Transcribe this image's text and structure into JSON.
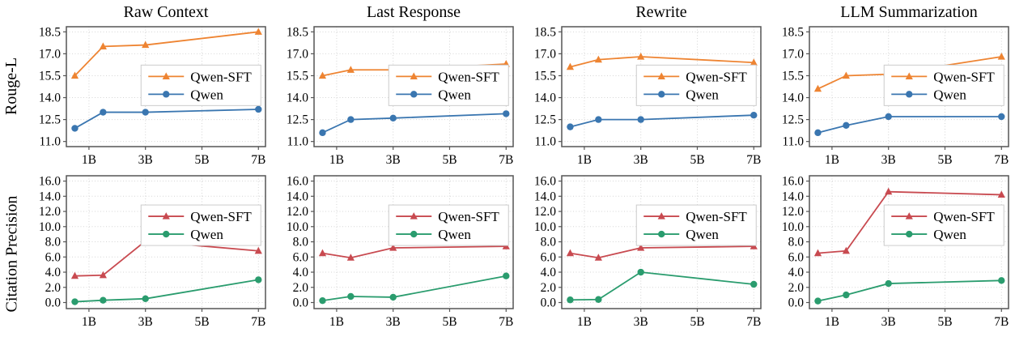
{
  "figure": {
    "row_labels": [
      "Rouge-L",
      "Citation Precision"
    ],
    "column_titles": [
      "Raw Context",
      "Last Response",
      "Rewrite",
      "LLM Summarization"
    ],
    "legend_labels": [
      "Qwen-SFT",
      "Qwen"
    ],
    "colors": {
      "rouge_sft": "#ee8432",
      "rouge_base": "#3a76b0",
      "citation_sft": "#c84a50",
      "citation_base": "#2a9c6e",
      "grid": "#d6d6d6",
      "spine": "#555555",
      "legend_border": "#cccccc",
      "text": "#000000"
    }
  },
  "chart_data": [
    {
      "type": "line",
      "title": "Raw Context",
      "ylabel": "Rouge-L",
      "xlabel": "",
      "x": [
        0.5,
        1.5,
        3,
        7
      ],
      "xlim": [
        0.2,
        7.25
      ],
      "xtick_values": [
        1,
        3,
        5,
        7
      ],
      "xtick_labels": [
        "1B",
        "3B",
        "5B",
        "7B"
      ],
      "ylim": [
        10.65,
        18.85
      ],
      "ytick_values": [
        11.0,
        12.5,
        14.0,
        15.5,
        17.0,
        18.5
      ],
      "ytick_labels": [
        "11.0",
        "12.5",
        "14.0",
        "15.5",
        "17.0",
        "18.5"
      ],
      "grid": true,
      "legend_position": "center right",
      "series": [
        {
          "name": "Qwen-SFT",
          "color": "#ee8432",
          "marker": "triangle",
          "values": [
            15.5,
            17.5,
            17.6,
            18.5
          ]
        },
        {
          "name": "Qwen",
          "color": "#3a76b0",
          "marker": "circle",
          "values": [
            11.9,
            13.0,
            13.0,
            13.2
          ]
        }
      ]
    },
    {
      "type": "line",
      "title": "Last Response",
      "ylabel": "Rouge-L",
      "xlabel": "",
      "x": [
        0.5,
        1.5,
        3,
        7
      ],
      "xlim": [
        0.2,
        7.25
      ],
      "xtick_values": [
        1,
        3,
        5,
        7
      ],
      "xtick_labels": [
        "1B",
        "3B",
        "5B",
        "7B"
      ],
      "ylim": [
        10.65,
        18.85
      ],
      "ytick_values": [
        11.0,
        12.5,
        14.0,
        15.5,
        17.0,
        18.5
      ],
      "ytick_labels": [
        "11.0",
        "12.5",
        "14.0",
        "15.5",
        "17.0",
        "18.5"
      ],
      "grid": true,
      "legend_position": "center right",
      "series": [
        {
          "name": "Qwen-SFT",
          "color": "#ee8432",
          "marker": "triangle",
          "values": [
            15.5,
            15.9,
            15.9,
            16.3
          ]
        },
        {
          "name": "Qwen",
          "color": "#3a76b0",
          "marker": "circle",
          "values": [
            11.6,
            12.5,
            12.6,
            12.9
          ]
        }
      ]
    },
    {
      "type": "line",
      "title": "Rewrite",
      "ylabel": "Rouge-L",
      "xlabel": "",
      "x": [
        0.5,
        1.5,
        3,
        7
      ],
      "xlim": [
        0.2,
        7.25
      ],
      "xtick_values": [
        1,
        3,
        5,
        7
      ],
      "xtick_labels": [
        "1B",
        "3B",
        "5B",
        "7B"
      ],
      "ylim": [
        10.65,
        18.85
      ],
      "ytick_values": [
        11.0,
        12.5,
        14.0,
        15.5,
        17.0,
        18.5
      ],
      "ytick_labels": [
        "11.0",
        "12.5",
        "14.0",
        "15.5",
        "17.0",
        "18.5"
      ],
      "grid": true,
      "legend_position": "center right",
      "series": [
        {
          "name": "Qwen-SFT",
          "color": "#ee8432",
          "marker": "triangle",
          "values": [
            16.1,
            16.6,
            16.8,
            16.4
          ]
        },
        {
          "name": "Qwen",
          "color": "#3a76b0",
          "marker": "circle",
          "values": [
            12.0,
            12.5,
            12.5,
            12.8
          ]
        }
      ]
    },
    {
      "type": "line",
      "title": "LLM Summarization",
      "ylabel": "Rouge-L",
      "xlabel": "",
      "x": [
        0.5,
        1.5,
        3,
        7
      ],
      "xlim": [
        0.2,
        7.25
      ],
      "xtick_values": [
        1,
        3,
        5,
        7
      ],
      "xtick_labels": [
        "1B",
        "3B",
        "5B",
        "7B"
      ],
      "ylim": [
        10.65,
        18.85
      ],
      "ytick_values": [
        11.0,
        12.5,
        14.0,
        15.5,
        17.0,
        18.5
      ],
      "ytick_labels": [
        "11.0",
        "12.5",
        "14.0",
        "15.5",
        "17.0",
        "18.5"
      ],
      "grid": true,
      "legend_position": "center right",
      "series": [
        {
          "name": "Qwen-SFT",
          "color": "#ee8432",
          "marker": "triangle",
          "values": [
            14.6,
            15.5,
            15.6,
            16.8
          ]
        },
        {
          "name": "Qwen",
          "color": "#3a76b0",
          "marker": "circle",
          "values": [
            11.6,
            12.1,
            12.7,
            12.7
          ]
        }
      ]
    },
    {
      "type": "line",
      "title": "Raw Context",
      "ylabel": "Citation Precision",
      "xlabel": "",
      "x": [
        0.5,
        1.5,
        3,
        7
      ],
      "xlim": [
        0.2,
        7.25
      ],
      "xtick_values": [
        1,
        3,
        5,
        7
      ],
      "xtick_labels": [
        "1B",
        "3B",
        "5B",
        "7B"
      ],
      "ylim": [
        -0.8,
        16.7
      ],
      "ytick_values": [
        0,
        2,
        4,
        6,
        8,
        10,
        12,
        14,
        16
      ],
      "ytick_labels": [
        "0.0",
        "2.0",
        "4.0",
        "6.0",
        "8.0",
        "10.0",
        "12.0",
        "14.0",
        "16.0"
      ],
      "grid": true,
      "legend_position": "center right",
      "series": [
        {
          "name": "Qwen-SFT",
          "color": "#c84a50",
          "marker": "triangle",
          "values": [
            3.5,
            3.6,
            8.1,
            6.8
          ]
        },
        {
          "name": "Qwen",
          "color": "#2a9c6e",
          "marker": "circle",
          "values": [
            0.1,
            0.3,
            0.5,
            3.0
          ]
        }
      ]
    },
    {
      "type": "line",
      "title": "Last Response",
      "ylabel": "Citation Precision",
      "xlabel": "",
      "x": [
        0.5,
        1.5,
        3,
        7
      ],
      "xlim": [
        0.2,
        7.25
      ],
      "xtick_values": [
        1,
        3,
        5,
        7
      ],
      "xtick_labels": [
        "1B",
        "3B",
        "5B",
        "7B"
      ],
      "ylim": [
        -0.8,
        16.7
      ],
      "ytick_values": [
        0,
        2,
        4,
        6,
        8,
        10,
        12,
        14,
        16
      ],
      "ytick_labels": [
        "0.0",
        "2.0",
        "4.0",
        "6.0",
        "8.0",
        "10.0",
        "12.0",
        "14.0",
        "16.0"
      ],
      "grid": true,
      "legend_position": "center right",
      "series": [
        {
          "name": "Qwen-SFT",
          "color": "#c84a50",
          "marker": "triangle",
          "values": [
            6.5,
            5.9,
            7.2,
            7.4
          ]
        },
        {
          "name": "Qwen",
          "color": "#2a9c6e",
          "marker": "circle",
          "values": [
            0.25,
            0.8,
            0.7,
            3.5
          ]
        }
      ]
    },
    {
      "type": "line",
      "title": "Rewrite",
      "ylabel": "Citation Precision",
      "xlabel": "",
      "x": [
        0.5,
        1.5,
        3,
        7
      ],
      "xlim": [
        0.2,
        7.25
      ],
      "xtick_values": [
        1,
        3,
        5,
        7
      ],
      "xtick_labels": [
        "1B",
        "3B",
        "5B",
        "7B"
      ],
      "ylim": [
        -0.8,
        16.7
      ],
      "ytick_values": [
        0,
        2,
        4,
        6,
        8,
        10,
        12,
        14,
        16
      ],
      "ytick_labels": [
        "0.0",
        "2.0",
        "4.0",
        "6.0",
        "8.0",
        "10.0",
        "12.0",
        "14.0",
        "16.0"
      ],
      "grid": true,
      "legend_position": "center right",
      "series": [
        {
          "name": "Qwen-SFT",
          "color": "#c84a50",
          "marker": "triangle",
          "values": [
            6.5,
            5.9,
            7.2,
            7.4
          ]
        },
        {
          "name": "Qwen",
          "color": "#2a9c6e",
          "marker": "circle",
          "values": [
            0.35,
            0.4,
            4.0,
            2.4
          ]
        }
      ]
    },
    {
      "type": "line",
      "title": "LLM Summarization",
      "ylabel": "Citation Precision",
      "xlabel": "",
      "x": [
        0.5,
        1.5,
        3,
        7
      ],
      "xlim": [
        0.2,
        7.25
      ],
      "xtick_values": [
        1,
        3,
        5,
        7
      ],
      "xtick_labels": [
        "1B",
        "3B",
        "5B",
        "7B"
      ],
      "ylim": [
        -0.8,
        16.7
      ],
      "ytick_values": [
        0,
        2,
        4,
        6,
        8,
        10,
        12,
        14,
        16
      ],
      "ytick_labels": [
        "0.0",
        "2.0",
        "4.0",
        "6.0",
        "8.0",
        "10.0",
        "12.0",
        "14.0",
        "16.0"
      ],
      "grid": true,
      "legend_position": "center right",
      "series": [
        {
          "name": "Qwen-SFT",
          "color": "#c84a50",
          "marker": "triangle",
          "values": [
            6.5,
            6.8,
            14.6,
            14.2
          ]
        },
        {
          "name": "Qwen",
          "color": "#2a9c6e",
          "marker": "circle",
          "values": [
            0.2,
            1.0,
            2.5,
            2.9
          ]
        }
      ]
    }
  ]
}
